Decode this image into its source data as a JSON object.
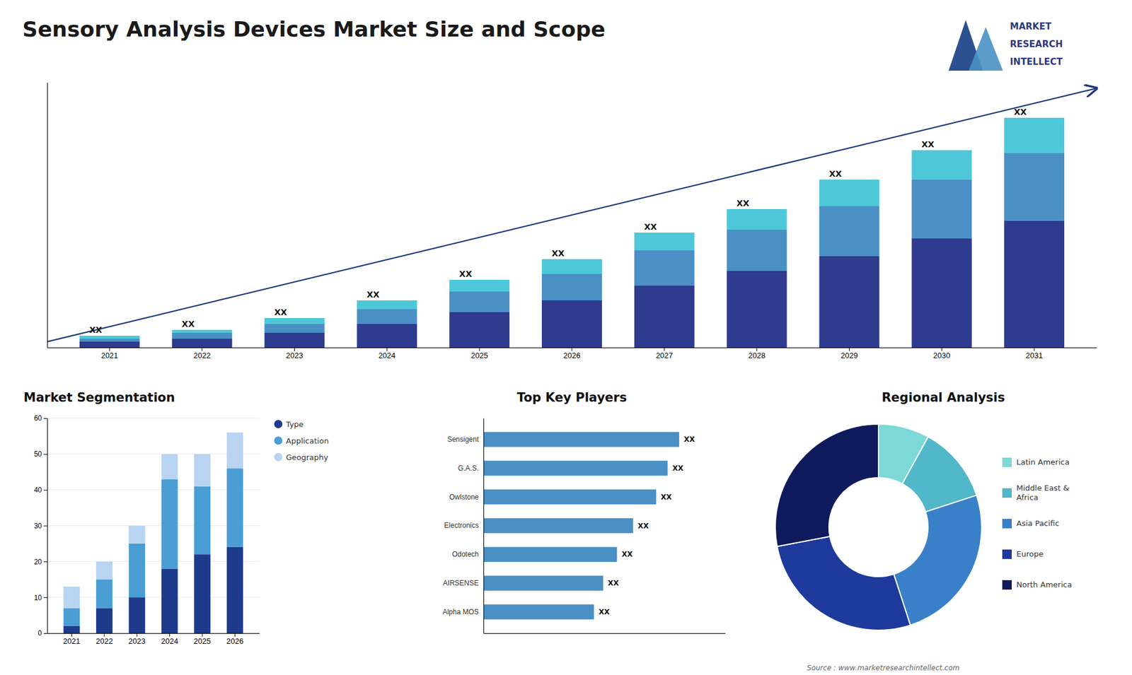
{
  "title": "Sensory Analysis Devices Market Size and Scope",
  "annotations": [
    "MARKET",
    "RESEARCH",
    "INTELLECT",
    "Source : www.marketresearchintellect.com"
  ],
  "chart_data": [
    {
      "type": "bar",
      "stacked": true,
      "categories": [
        "2021",
        "2022",
        "2023",
        "2024",
        "2025",
        "2026",
        "2027",
        "2028",
        "2029",
        "2030",
        "2031"
      ],
      "series": [
        {
          "color": "#2e3b8e",
          "values": [
            2,
            3,
            5,
            8,
            12,
            16,
            21,
            26,
            31,
            37,
            43
          ]
        },
        {
          "color": "#4a90c4",
          "values": [
            1,
            2,
            3,
            5,
            7,
            9,
            12,
            14,
            17,
            20,
            23
          ]
        },
        {
          "color": "#4ec8d8",
          "values": [
            1,
            1,
            2,
            3,
            4,
            5,
            6,
            7,
            9,
            10,
            12
          ],
          "value_labels": [
            "XX",
            "XX",
            "XX",
            "XX",
            "XX",
            "XX",
            "XX",
            "XX",
            "XX",
            "XX",
            "XX"
          ]
        }
      ],
      "ylim": [
        0,
        90
      ],
      "tick_labels": "x",
      "grid": false
    },
    {
      "type": "bar",
      "stacked": true,
      "title": "Market Segmentation",
      "categories": [
        "2021",
        "2022",
        "2023",
        "2024",
        "2025",
        "2026"
      ],
      "series": [
        {
          "name": "Type",
          "color": "#1e3a8a",
          "values": [
            2,
            7,
            10,
            18,
            22,
            24
          ]
        },
        {
          "name": "Application",
          "color": "#4a9ed4",
          "values": [
            5,
            8,
            15,
            25,
            19,
            22
          ]
        },
        {
          "name": "Geography",
          "color": "#b8d4f0",
          "values": [
            6,
            5,
            5,
            7,
            9,
            10
          ]
        }
      ],
      "ylim": [
        0,
        60
      ],
      "yticks": [
        0,
        10,
        20,
        30,
        40,
        50,
        60
      ],
      "grid": true,
      "legend": "right"
    },
    {
      "type": "bar",
      "orientation": "horizontal",
      "title": "Top Key Players",
      "categories": [
        "Sensigent",
        "G.A.S.",
        "Owlstone",
        "Electronics",
        "Odotech",
        "AIRSENSE",
        "Alpha MOS"
      ],
      "values": [
        85,
        80,
        75,
        65,
        58,
        52,
        48
      ],
      "value_labels": [
        "XX",
        "XX",
        "XX",
        "XX",
        "XX",
        "XX",
        "XX"
      ],
      "color": "#4a90c4",
      "xlim": [
        0,
        105
      ],
      "tick_labels": "y"
    },
    {
      "type": "donut",
      "title": "Regional Analysis",
      "categories": [
        "Latin America",
        "Middle East &\nAfrica",
        "Asia Pacific",
        "Europe",
        "North America"
      ],
      "values": [
        8,
        12,
        25,
        27,
        28
      ],
      "colors": [
        "#7dd8d8",
        "#50b8c8",
        "#3a80c8",
        "#1e3a9c",
        "#0f1a5c"
      ],
      "legend": "right"
    }
  ]
}
